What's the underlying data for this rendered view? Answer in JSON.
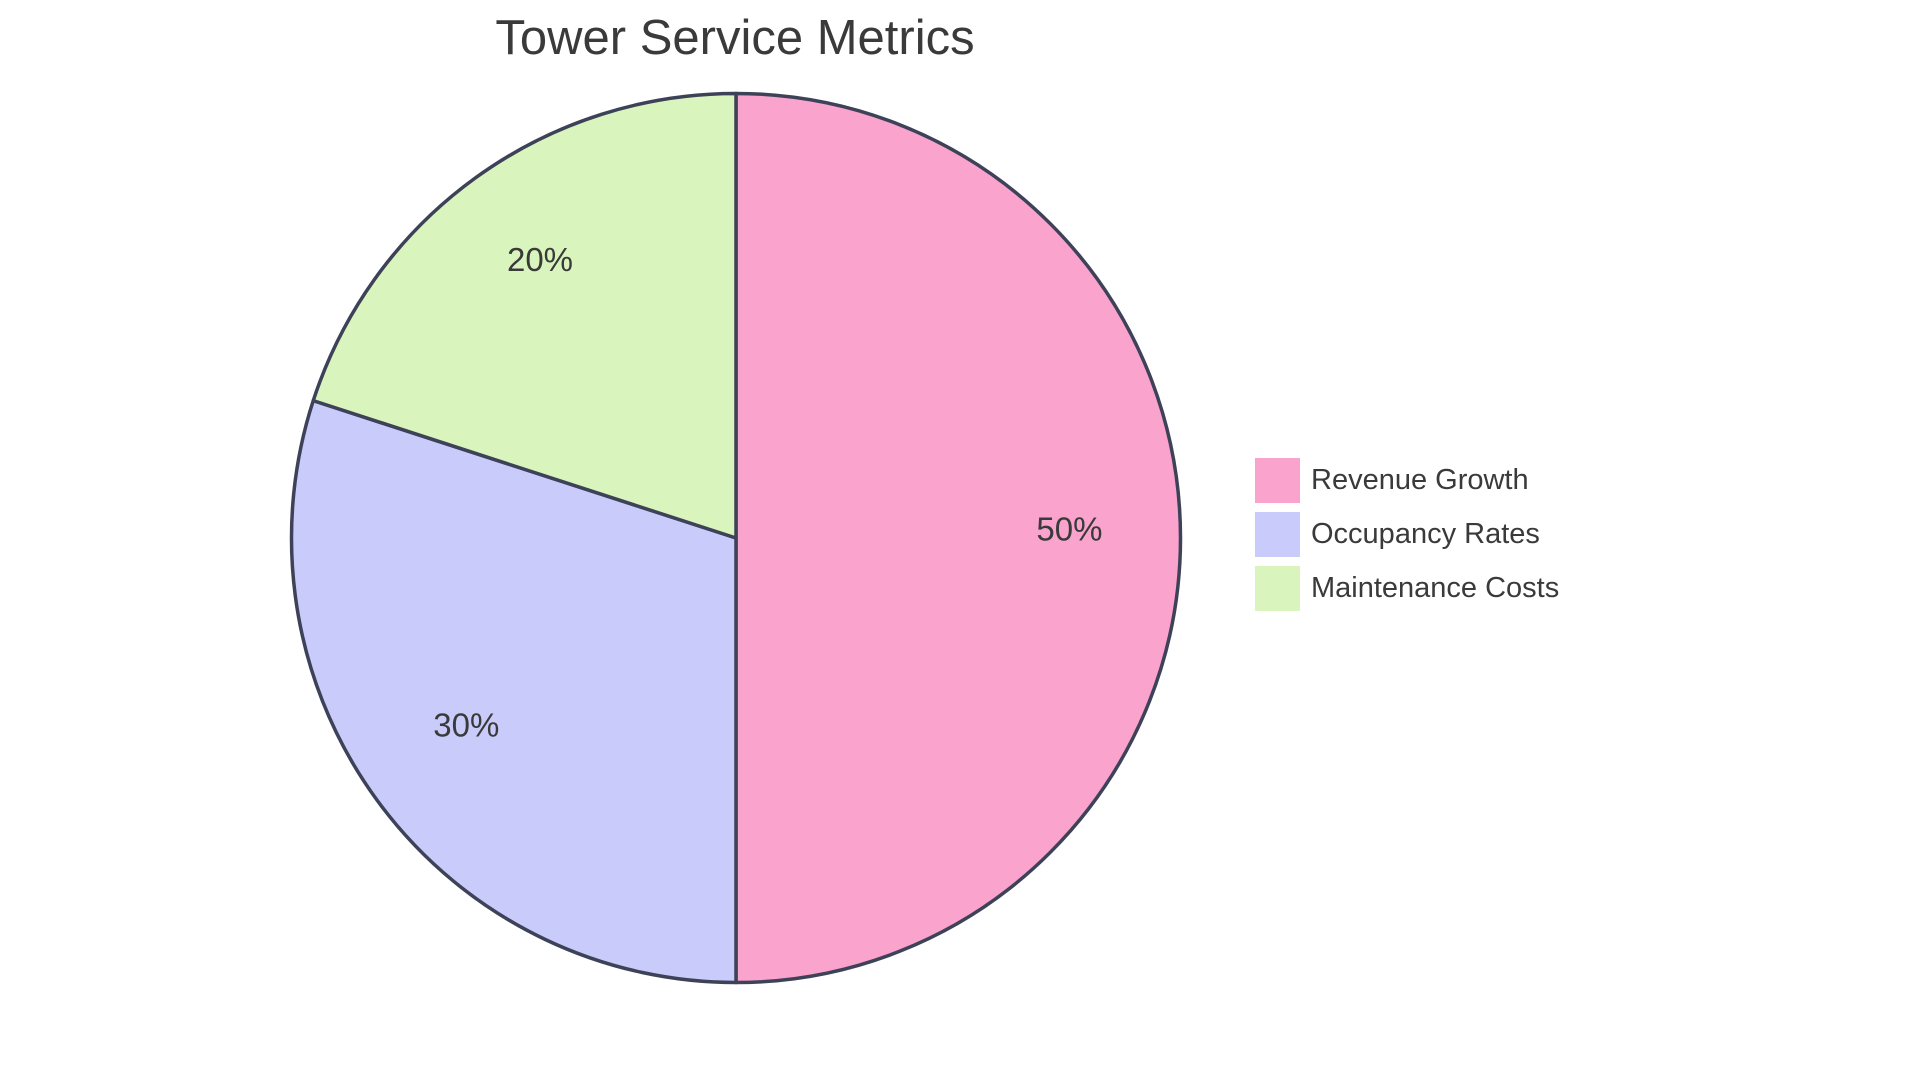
{
  "chart_data": {
    "type": "pie",
    "title": "Tower Service Metrics",
    "slices": [
      {
        "label": "Revenue Growth",
        "value": 50,
        "percent_label": "50%",
        "color": "#FAA3CD"
      },
      {
        "label": "Occupancy Rates",
        "value": 30,
        "percent_label": "30%",
        "color": "#C9CCFA"
      },
      {
        "label": "Maintenance Costs",
        "value": 20,
        "percent_label": "20%",
        "color": "#D9F5BD"
      }
    ],
    "start_angle": "top",
    "direction": "clockwise",
    "legend_position": "right",
    "outline_color": "#3D4259",
    "text_color": "#3A3A3A",
    "background_color": "#FFFFFF"
  }
}
